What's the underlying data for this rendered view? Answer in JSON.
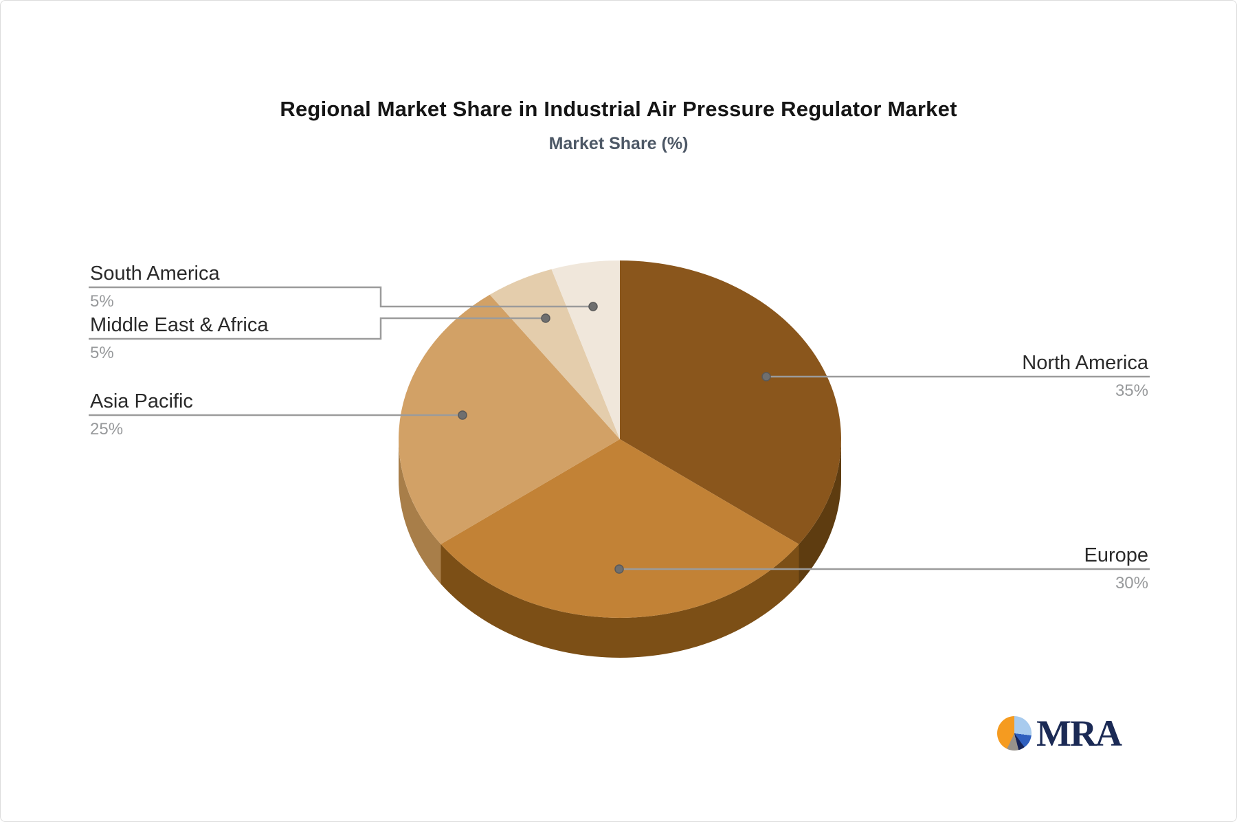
{
  "header": {
    "title": "Regional Market Share in Industrial Air Pressure Regulator Market",
    "subtitle": "Market Share (%)"
  },
  "chart_data": {
    "type": "pie",
    "title": "Regional Market Share in Industrial Air Pressure Regulator Market",
    "value_axis_label": "Market Share (%)",
    "unit": "%",
    "effect": "3d",
    "start_angle_deg": 0,
    "direction": "clockwise",
    "legend": "none",
    "slices": [
      {
        "name": "North America",
        "value": 35,
        "pct": "35%",
        "color": "#8A561C",
        "side_color": "#5E3C10"
      },
      {
        "name": "Europe",
        "value": 30,
        "pct": "30%",
        "color": "#C28236",
        "side_color": "#7C4F16"
      },
      {
        "name": "Asia Pacific",
        "value": 25,
        "pct": "25%",
        "color": "#D2A166",
        "side_color": "#A87E49"
      },
      {
        "name": "Middle East & Africa",
        "value": 5,
        "pct": "5%",
        "color": "#E4CDAC",
        "side_color": "#B7A283"
      },
      {
        "name": "South America",
        "value": 5,
        "pct": "5%",
        "color": "#F0E7DB",
        "side_color": "#C2B6A5"
      }
    ],
    "label_style": {
      "name_color": "#2A2A2A",
      "value_color": "#97999B",
      "line_color": "#9B9B9B",
      "dot_color": "#6F6F6F"
    }
  },
  "logo": {
    "text": "MRA",
    "icon": "pie-icon",
    "text_color": "#1B2A55",
    "icon_colors": [
      "#F59B20",
      "#A8CBEE",
      "#2F5FBE",
      "#17255A",
      "#97928B"
    ]
  }
}
